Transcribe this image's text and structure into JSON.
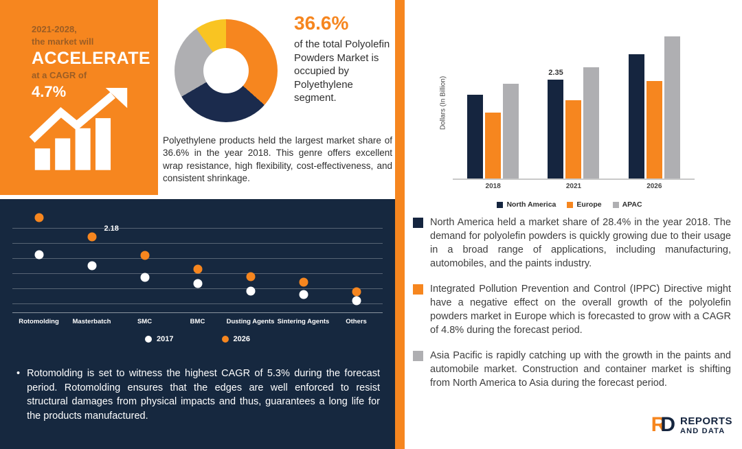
{
  "colors": {
    "orange": "#F6861F",
    "navy": "#16283F",
    "bar_navy": "#15253F",
    "gray": "#AFAFB2",
    "yellow": "#F9C422",
    "white": "#FFFFFF",
    "text_dark": "#3D3D3D"
  },
  "accelerate_panel": {
    "period": "2021-2028,",
    "line2": "the market will",
    "headline": "ACCELERATE",
    "line4": "at a CAGR of",
    "cagr": "4.7%"
  },
  "donut_panel": {
    "headline_pct": "36.6%",
    "headline_rest": "of the total Polyolefin Powders Market is occupied by Polyethylene segment.",
    "body": "Polyethylene products held the largest market share of 36.6% in the year 2018. This genre offers excellent wrap resistance, high flexibility, cost-effectiveness, and consistent shrinkage."
  },
  "navy_panel": {
    "bullet_char": "•",
    "bullet": "Rotomolding is set to witness the highest CAGR of 5.3% during the forecast period. Rotomolding ensures that the edges are well enforced to resist structural damages from physical impacts and thus, guarantees a long life for the products manufactured."
  },
  "right_panel": {
    "bullets": [
      {
        "marker_color": "#15253F",
        "text": "North America held a market share of 28.4% in the year 2018. The demand for polyolefin powders is quickly growing due to their usage in a broad range of applications, including manufacturing, automobiles, and the paints industry."
      },
      {
        "marker_color": "#F6861F",
        "text": "Integrated Pollution Prevention and Control (IPPC) Directive might have a negative effect on the overall growth of the polyolefin powders market in Europe which is forecasted to grow with a CAGR of 4.8% during the forecast period."
      },
      {
        "marker_color": "#AFAFB2",
        "text": "Asia Pacific is rapidly catching up with the growth in the paints and automobile market. Construction and container market is shifting from North America to Asia during the forecast period."
      }
    ]
  },
  "logo": {
    "mark_r": "R",
    "mark_d": "D",
    "line1": "REPORTS",
    "line2": "AND DATA"
  },
  "chart_data": [
    {
      "id": "polyethylene-share-donut",
      "type": "pie",
      "title": "Polyethylene segment share of Polyolefin Powders Market",
      "segments": [
        {
          "label": "Polyethylene",
          "value": 36.6,
          "color": "#F6861F"
        },
        {
          "label": "",
          "value": 30.0,
          "color": "#1B2B4D"
        },
        {
          "label": "",
          "value": 23.6,
          "color": "#AFAFB2"
        },
        {
          "label": "",
          "value": 9.8,
          "color": "#F9C422"
        }
      ],
      "labeled_value": "36.6%"
    },
    {
      "id": "applications-dot-plot",
      "type": "scatter",
      "categories": [
        "Rotomolding",
        "Masterbatch",
        "SMC",
        "BMC",
        "Dusting Agents",
        "Sintering Agents",
        "Others"
      ],
      "series": [
        {
          "name": "2017",
          "color": "#FFFFFF",
          "values": [
            1.94,
            1.79,
            1.63,
            1.54,
            1.44,
            1.39,
            1.31
          ]
        },
        {
          "name": "2026",
          "color": "#F6861F",
          "values": [
            2.44,
            2.18,
            1.93,
            1.74,
            1.64,
            1.56,
            1.43
          ]
        }
      ],
      "ylim": [
        1.15,
        2.6
      ],
      "grid": true,
      "legend_position": "bottom",
      "annotations": [
        {
          "series": "2026",
          "category": "Masterbatch",
          "text": "2.18"
        }
      ]
    },
    {
      "id": "regional-market-bar",
      "type": "bar",
      "categories": [
        "2018",
        "2021",
        "2026"
      ],
      "series": [
        {
          "name": "North America",
          "color": "#15253F",
          "values": [
            1.98,
            2.35,
            2.95
          ]
        },
        {
          "name": "Europe",
          "color": "#F6861F",
          "values": [
            1.57,
            1.86,
            2.32
          ]
        },
        {
          "name": "APAC",
          "color": "#AFAFB2",
          "values": [
            2.24,
            2.63,
            3.37
          ]
        }
      ],
      "ylabel": "Dollars (In Billion)",
      "ylim": [
        0,
        3.5
      ],
      "grid": false,
      "legend_position": "bottom",
      "annotations": [
        {
          "series": "North America",
          "category": "2021",
          "text": "2.35"
        }
      ]
    }
  ]
}
